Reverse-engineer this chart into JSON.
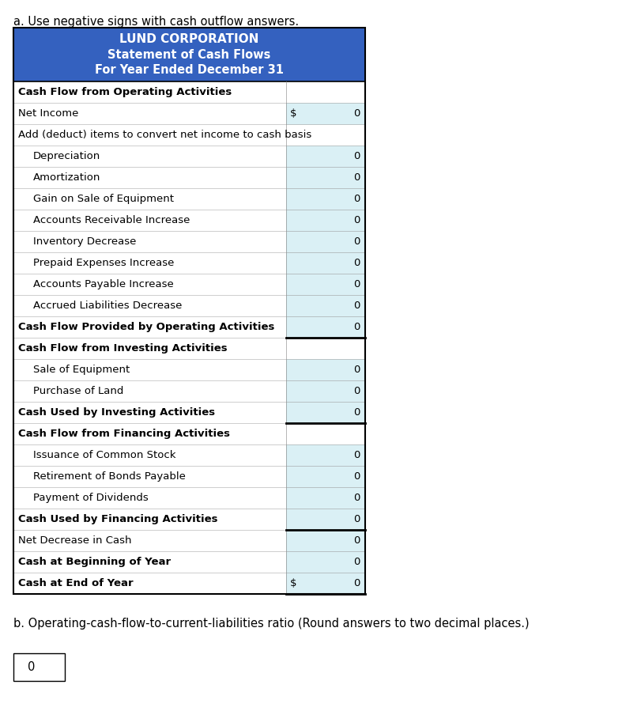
{
  "top_note": "a. Use negative signs with cash outflow answers.",
  "header_lines": [
    "LUND CORPORATION",
    "Statement of Cash Flows",
    "For Year Ended December 31"
  ],
  "header_bg": "#3461BF",
  "header_text_color": "#FFFFFF",
  "input_cell_bg": "#DAF0F5",
  "rows": [
    {
      "label": "Cash Flow from Operating Activities",
      "type": "section_header",
      "col1": "",
      "col2": ""
    },
    {
      "label": "Net Income",
      "type": "data_dollar",
      "col1": "$",
      "col2": "0"
    },
    {
      "label": "Add (deduct) items to convert net income to cash basis",
      "type": "subheader",
      "col1": "",
      "col2": ""
    },
    {
      "label": "Depreciation",
      "type": "indent_data",
      "col1": "",
      "col2": "0"
    },
    {
      "label": "Amortization",
      "type": "indent_data",
      "col1": "",
      "col2": "0"
    },
    {
      "label": "Gain on Sale of Equipment",
      "type": "indent_data",
      "col1": "",
      "col2": "0"
    },
    {
      "label": "Accounts Receivable Increase",
      "type": "indent_data",
      "col1": "",
      "col2": "0"
    },
    {
      "label": "Inventory Decrease",
      "type": "indent_data",
      "col1": "",
      "col2": "0"
    },
    {
      "label": "Prepaid Expenses Increase",
      "type": "indent_data",
      "col1": "",
      "col2": "0"
    },
    {
      "label": "Accounts Payable Increase",
      "type": "indent_data",
      "col1": "",
      "col2": "0"
    },
    {
      "label": "Accrued Liabilities Decrease",
      "type": "indent_data",
      "col1": "",
      "col2": "0"
    },
    {
      "label": "Cash Flow Provided by Operating Activities",
      "type": "bold_thick",
      "col1": "",
      "col2": "0"
    },
    {
      "label": "Cash Flow from Investing Activities",
      "type": "section_header",
      "col1": "",
      "col2": ""
    },
    {
      "label": "Sale of Equipment",
      "type": "indent_data",
      "col1": "",
      "col2": "0"
    },
    {
      "label": "Purchase of Land",
      "type": "indent_data",
      "col1": "",
      "col2": "0"
    },
    {
      "label": "Cash Used by Investing Activities",
      "type": "bold_thick",
      "col1": "",
      "col2": "0"
    },
    {
      "label": "Cash Flow from Financing Activities",
      "type": "section_header",
      "col1": "",
      "col2": ""
    },
    {
      "label": "Issuance of Common Stock",
      "type": "indent_data",
      "col1": "",
      "col2": "0"
    },
    {
      "label": "Retirement of Bonds Payable",
      "type": "indent_data",
      "col1": "",
      "col2": "0"
    },
    {
      "label": "Payment of Dividends",
      "type": "indent_data",
      "col1": "",
      "col2": "0"
    },
    {
      "label": "Cash Used by Financing Activities",
      "type": "bold_thick",
      "col1": "",
      "col2": "0"
    },
    {
      "label": "Net Decrease in Cash",
      "type": "plain_data",
      "col1": "",
      "col2": "0"
    },
    {
      "label": "Cash at Beginning of Year",
      "type": "bold_data",
      "col1": "",
      "col2": "0"
    },
    {
      "label": "Cash at End of Year",
      "type": "bold_dollar_thick",
      "col1": "$",
      "col2": "0"
    }
  ],
  "bottom_note": "b. Operating-cash-flow-to-current-liabilities ratio (Round answers to two decimal places.)",
  "bottom_box_value": "0",
  "fig_bg": "#FFFFFF",
  "fig_width": 8.11,
  "fig_height": 8.99,
  "dpi": 100
}
